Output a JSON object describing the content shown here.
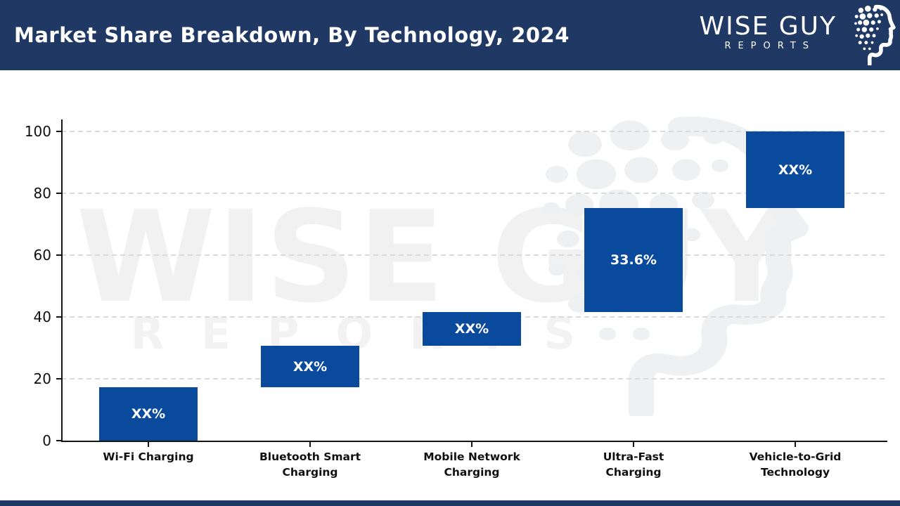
{
  "header": {
    "title": "Market Share Breakdown, By Technology, 2024",
    "logo": {
      "line1": "WISE GUY",
      "line2": "REPORTS"
    },
    "bg_color": "#1f3864"
  },
  "watermark": {
    "line1": "WISE GUY",
    "line2": "REPORTS"
  },
  "chart_data": {
    "type": "bar",
    "subtype": "waterfall",
    "title": "Market Share Breakdown, By Technology, 2024",
    "categories": [
      "Wi-Fi Charging",
      "Bluetooth Smart\nCharging",
      "Mobile Network\nCharging",
      "Ultra-Fast\nCharging",
      "Vehicle-to-Grid\nTechnology"
    ],
    "series": [
      {
        "name": "Market Share (%)",
        "values": [
          17.2,
          13.5,
          10.9,
          33.6,
          24.8
        ]
      }
    ],
    "cumulative_start": [
      0,
      17.2,
      30.7,
      41.6,
      75.2
    ],
    "cumulative_end": [
      17.2,
      30.7,
      41.6,
      75.2,
      100
    ],
    "bar_labels": [
      "XX%",
      "XX%",
      "XX%",
      "33.6%",
      "XX%"
    ],
    "bar_color": "#0a4a9c",
    "bar_label_color": "#ffffff",
    "xlabel": "",
    "ylabel": "",
    "ylim": [
      0,
      100
    ],
    "yticks": [
      0,
      20,
      40,
      60,
      80,
      100
    ],
    "grid": "horizontal-dashed",
    "legend": "none"
  },
  "footer": {
    "bar_color": "#1f3864"
  }
}
